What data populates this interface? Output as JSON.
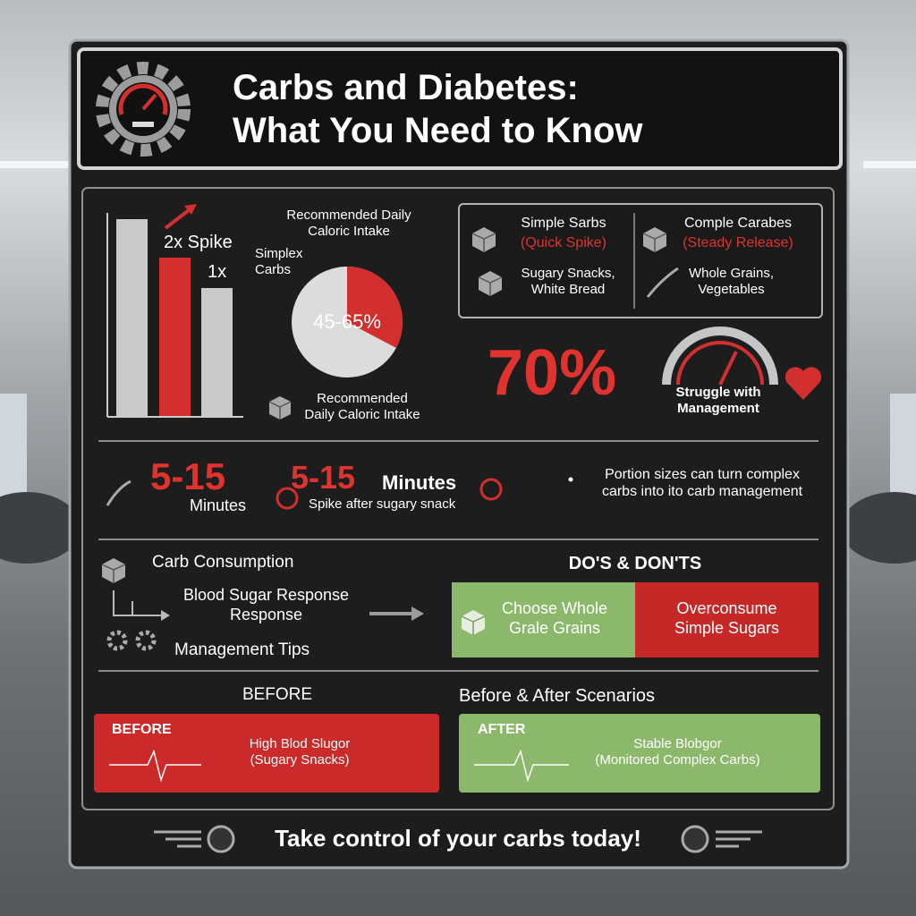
{
  "header": {
    "title_lines": [
      "Carbs and Diabetes:",
      "What You Need to Know"
    ]
  },
  "spike_chart": {
    "spike_label": "2x Spike",
    "base_label": "1x"
  },
  "pie": {
    "title_lines": [
      "Recommended Daily",
      "Caloric Intake"
    ],
    "side_label_lines": [
      "Simplex",
      "Carbs"
    ],
    "value": "45-65%",
    "caption_lines": [
      "Recommended",
      "Daily Caloric Intake"
    ]
  },
  "comparison": {
    "simple": {
      "title": "Simple Sarbs",
      "subtitle": "(Quick Spike)",
      "example_lines": [
        "Sugary Snacks,",
        "White Bread"
      ]
    },
    "complex": {
      "title": "Comple Carabes",
      "subtitle": "(Steady Release)",
      "example_lines": [
        "Whole Grains,",
        "Vegetables"
      ]
    }
  },
  "stat": {
    "value": "70%",
    "label_lines": [
      "Struggle with",
      "Management"
    ]
  },
  "timing": {
    "value_1": "5-15",
    "unit_1": "Minutes",
    "value_2": "5-15",
    "unit_2": "Minutes",
    "caption": "Spike after sugary snack",
    "note_lines": [
      "Portion sizes can turn complex",
      "carbs into ito carb management"
    ]
  },
  "flow": {
    "step_1": "Carb Consumption",
    "step_2_lines": [
      "Blood Sugar Response",
      "Response"
    ],
    "step_3": "Management Tips"
  },
  "dos_donts": {
    "heading": "DO'S & DON'TS",
    "do_lines": [
      "Choose Whole",
      "Grale Grains"
    ],
    "dont_lines": [
      "Overconsume",
      "Simple Sugars"
    ]
  },
  "scenarios": {
    "left_heading": "BEFORE",
    "right_heading": "Before & After Scenarios",
    "before": {
      "label": "BEFORE",
      "text_lines": [
        "High Blod Slugor",
        "(Sugary Snacks)"
      ]
    },
    "after": {
      "label": "AFTER",
      "text_lines": [
        "Stable Blobgor",
        "(Monitored Complex Carbs)"
      ]
    }
  },
  "footer": {
    "text": "Take control of your carbs today!"
  }
}
